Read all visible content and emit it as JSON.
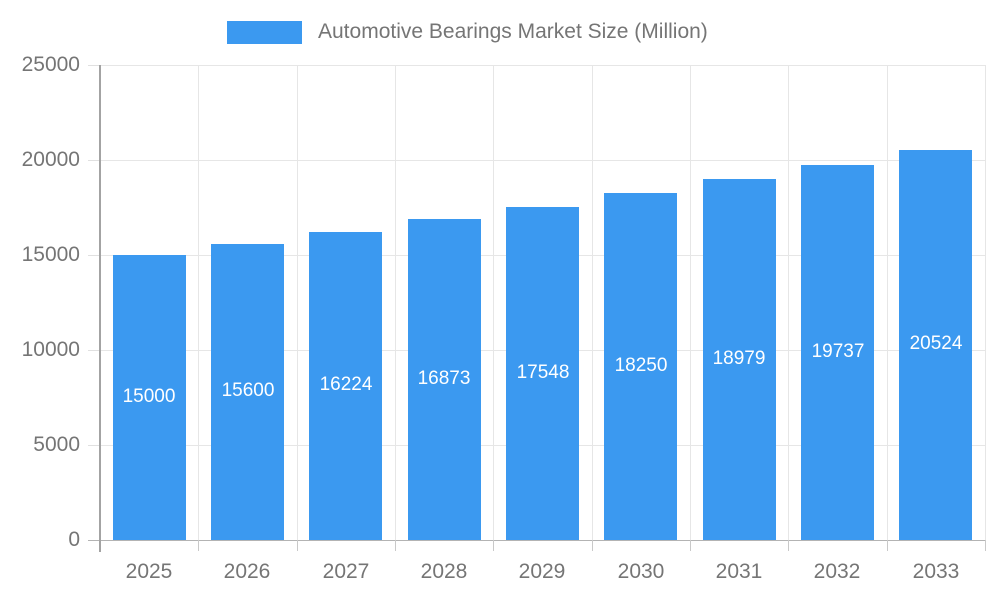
{
  "chart_data": {
    "type": "bar",
    "title": "Automotive Bearings Market Size (Million)",
    "categories": [
      "2025",
      "2026",
      "2027",
      "2028",
      "2029",
      "2030",
      "2031",
      "2032",
      "2033"
    ],
    "series": [
      {
        "name": "Automotive Bearings Market Size (Million)",
        "values": [
          15000,
          15600,
          16224,
          16873,
          17548,
          18250,
          18979,
          19737,
          20524
        ]
      }
    ],
    "bar_labels": [
      "15000",
      "15600",
      "16224",
      "16873",
      "17548",
      "18250",
      "18979",
      "19737",
      "20524"
    ],
    "xlabel": "",
    "ylabel": "",
    "ylim": [
      0,
      25000
    ],
    "yticks": [
      0,
      5000,
      10000,
      15000,
      20000,
      25000
    ],
    "ytick_labels": [
      "0",
      "5000",
      "10000",
      "15000",
      "20000",
      "25000"
    ],
    "grid": "on",
    "legend_position": "top",
    "colors": {
      "bar": "#3b99f0",
      "bar_label_text": "#ffffff",
      "axis_text": "#757575",
      "gridline": "#e6e6e6",
      "baseline": "#b3b3b3",
      "axis_line": "#a3a3a3"
    }
  }
}
